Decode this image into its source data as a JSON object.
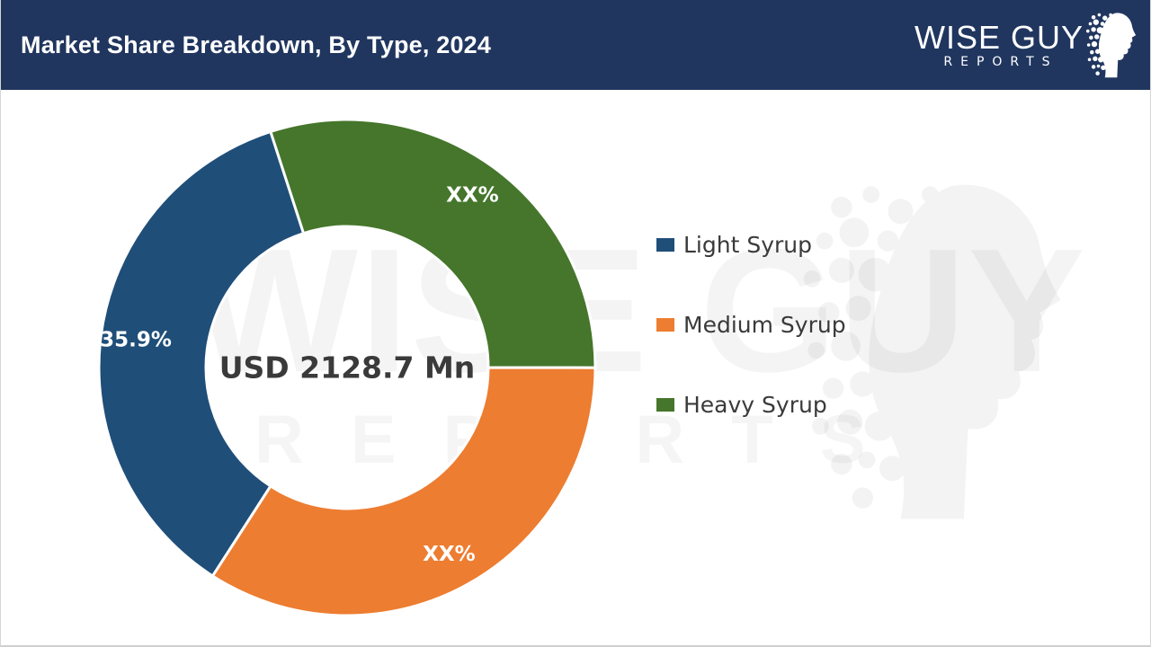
{
  "header": {
    "title": "Market Share Breakdown, By Type, 2024"
  },
  "logo": {
    "brand": "WISE GUY",
    "sub": "REPORTS"
  },
  "watermark": {
    "brand": "WISE GUY",
    "sub": "REPORTS"
  },
  "chart_data": {
    "type": "pie",
    "donut": true,
    "title": "Market Share Breakdown, By Type, 2024",
    "center_label": "USD 2128.7 Mn",
    "legend_position": "right",
    "start_angle_deg": 212.8,
    "draw_order": [
      0,
      2,
      1
    ],
    "segments": [
      {
        "name": "Light Syrup",
        "label": "35.9%",
        "pct": 35.9,
        "color": "#1F4E79"
      },
      {
        "name": "Medium Syrup",
        "label": "XX%",
        "pct": 34.1,
        "pct_estimated": true,
        "color": "#ED7D31"
      },
      {
        "name": "Heavy Syrup",
        "label": "XX%",
        "pct": 30.0,
        "pct_estimated": true,
        "color": "#45762B"
      }
    ]
  },
  "colors": {
    "header_bg": "#20365F",
    "text_dark": "#3A3A3A"
  }
}
